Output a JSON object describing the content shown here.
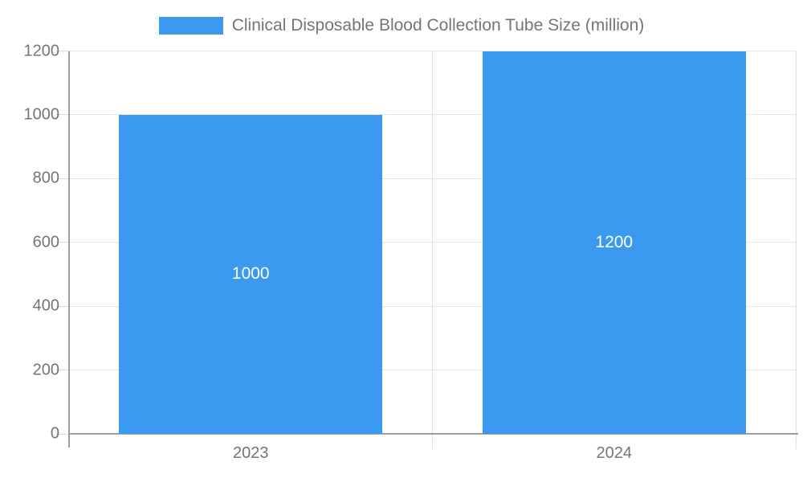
{
  "legend": {
    "label": "Clinical Disposable Blood Collection Tube Size (million)",
    "swatch_color": "#3b9aef"
  },
  "chart_data": {
    "type": "bar",
    "title": "Clinical Disposable Blood Collection Tube Size (million)",
    "categories": [
      "2023",
      "2024"
    ],
    "series": [
      {
        "name": "Clinical Disposable Blood Collection Tube Size (million)",
        "values": [
          1000,
          1200
        ]
      }
    ],
    "value_labels": [
      "1000",
      "1200"
    ],
    "xlabel": "",
    "ylabel": "",
    "ylim": [
      0,
      1200
    ],
    "yticks": [
      0,
      200,
      400,
      600,
      800,
      1000,
      1200
    ],
    "grid": true,
    "legend_position": "top",
    "colors": {
      "bar": "#3b9aef",
      "value_label": "#ffffff",
      "axis": "#9e9e9e",
      "gridline": "#e6e6e6",
      "tick": "#d9d9d9",
      "text": "#757575",
      "background": "#ffffff"
    }
  }
}
